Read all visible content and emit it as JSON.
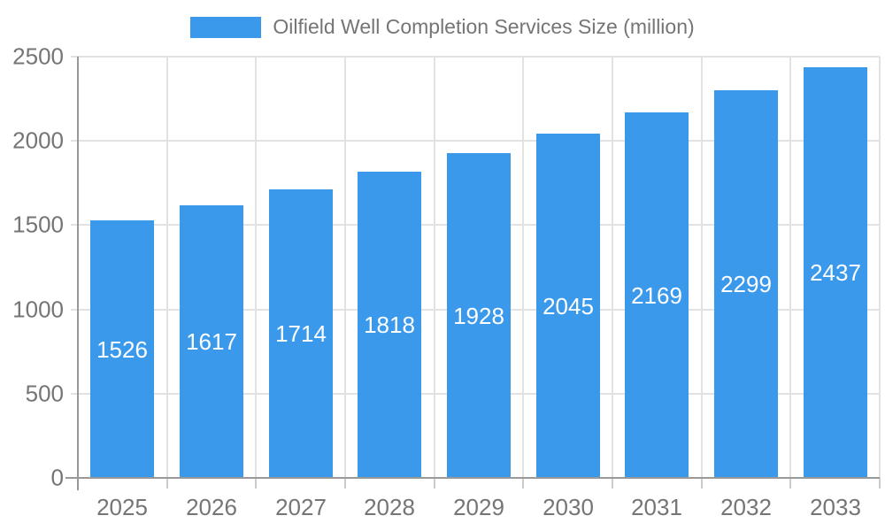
{
  "legend": {
    "label": "Oilfield Well Completion Services Size (million)"
  },
  "colors": {
    "bar": "#3B99EC",
    "grid": "#E2E2E2",
    "axis": "#999999",
    "tick_text": "#757575",
    "bar_label": "#FFFFFF"
  },
  "chart_data": {
    "type": "bar",
    "title": "Oilfield Well Completion Services Size (million)",
    "categories": [
      "2025",
      "2026",
      "2027",
      "2028",
      "2029",
      "2030",
      "2031",
      "2032",
      "2033"
    ],
    "values": [
      1526,
      1617,
      1714,
      1818,
      1928,
      2045,
      2169,
      2299,
      2437
    ],
    "xlabel": "",
    "ylabel": "",
    "ylim": [
      0,
      2500
    ],
    "yticks": [
      0,
      500,
      1000,
      1500,
      2000,
      2500
    ],
    "grid": true,
    "legend_position": "top",
    "bar_label_position": "inside-center"
  }
}
